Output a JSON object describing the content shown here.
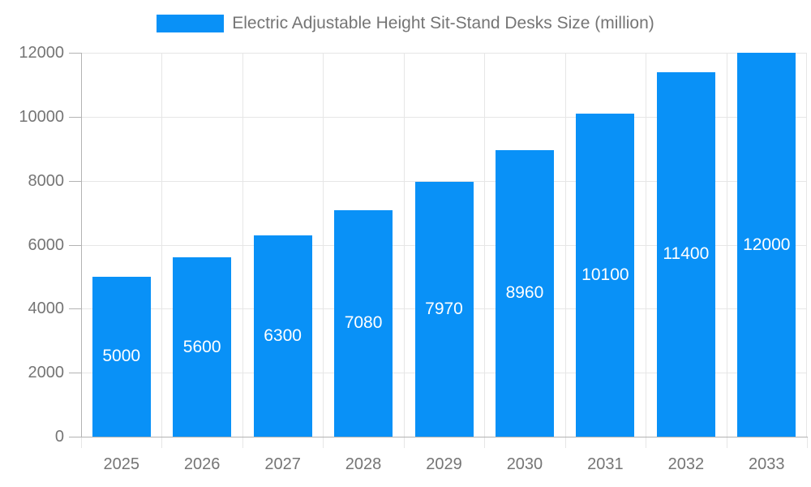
{
  "chart_data": {
    "type": "bar",
    "title": "Electric Adjustable Height Sit-Stand Desks Size (million)",
    "categories": [
      "2025",
      "2026",
      "2027",
      "2028",
      "2029",
      "2030",
      "2031",
      "2032",
      "2033"
    ],
    "series": [
      {
        "name": "Electric Adjustable Height Sit-Stand Desks Size (million)",
        "values": [
          5000,
          5600,
          6300,
          7080,
          7970,
          8960,
          10100,
          11400,
          12000
        ]
      }
    ],
    "xlabel": "",
    "ylabel": "",
    "ylim": [
      0,
      12000
    ],
    "yticks": [
      0,
      2000,
      4000,
      6000,
      8000,
      10000,
      12000
    ],
    "grid": true,
    "legend_position": "top",
    "colors": {
      "bar": "#0991f7",
      "bar_label": "#ffffff",
      "axis_line": "#b3b3b3",
      "gridline": "#e6e6e6",
      "tick_text": "#757575",
      "legend_text": "#757575",
      "background": "#ffffff"
    }
  }
}
